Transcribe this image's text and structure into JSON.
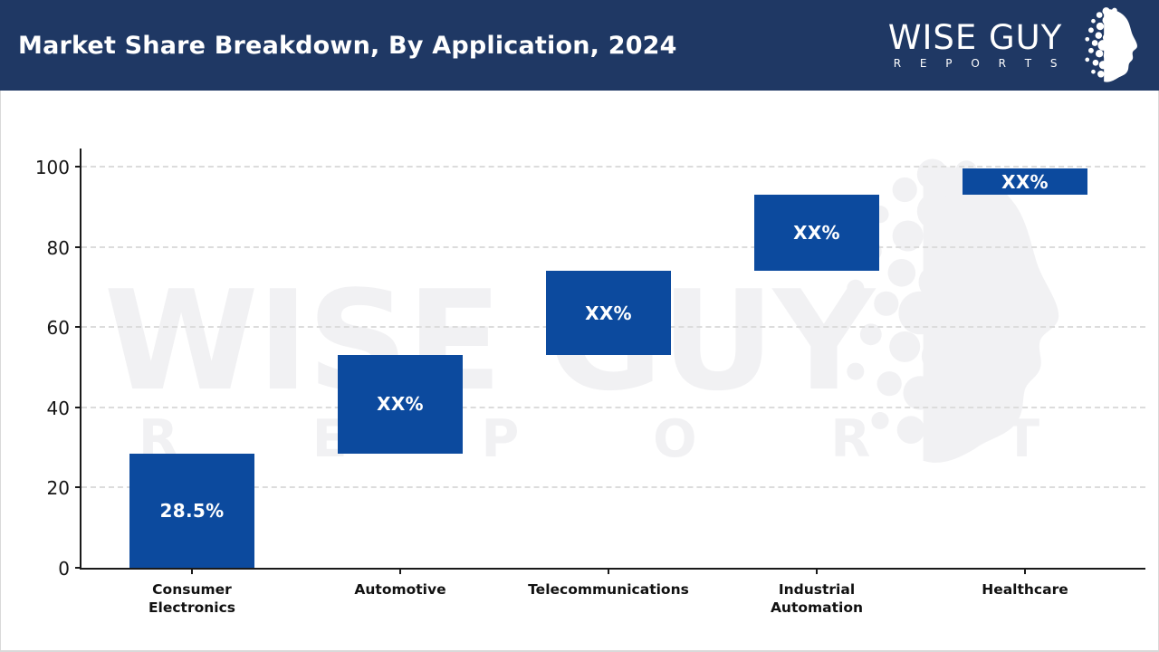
{
  "header": {
    "title": "Market Share Breakdown, By Application, 2024",
    "logo": {
      "line1": "WISE GUY",
      "line2": "REPORTS"
    }
  },
  "watermark": {
    "line1": "WISE GUY",
    "line2": "REPORTS"
  },
  "colors": {
    "header_bg": "#1f3864",
    "bar": "#0c4a9e",
    "bar_label": "#ffffff",
    "grid": "#dcdcdc",
    "axis": "#1a1a1a",
    "watermark": "#f1f1f3"
  },
  "chart_data": {
    "type": "bar",
    "subtype": "waterfall",
    "title": "Market Share Breakdown, By Application, 2024",
    "xlabel": "",
    "ylabel": "",
    "ylim": [
      0,
      104.5
    ],
    "yticks": [
      0,
      20,
      40,
      60,
      80,
      100
    ],
    "grid": "horizontal dashed",
    "legend": "none",
    "categories": [
      "Consumer Electronics",
      "Automotive",
      "Telecommunications",
      "Industrial Automation",
      "Healthcare"
    ],
    "category_label_lines": [
      [
        "Consumer",
        "Electronics"
      ],
      [
        "Automotive"
      ],
      [
        "Telecommunications"
      ],
      [
        "Industrial",
        "Automation"
      ],
      [
        "Healthcare"
      ]
    ],
    "segments": [
      {
        "category": "Consumer Electronics",
        "start": 0,
        "end": 28.5,
        "label": "28.5%"
      },
      {
        "category": "Automotive",
        "start": 28.5,
        "end": 53,
        "label": "XX%"
      },
      {
        "category": "Telecommunications",
        "start": 53,
        "end": 74,
        "label": "XX%"
      },
      {
        "category": "Industrial Automation",
        "start": 74,
        "end": 93,
        "label": "XX%"
      },
      {
        "category": "Healthcare",
        "start": 93,
        "end": 99.5,
        "label": "XX%"
      }
    ]
  }
}
